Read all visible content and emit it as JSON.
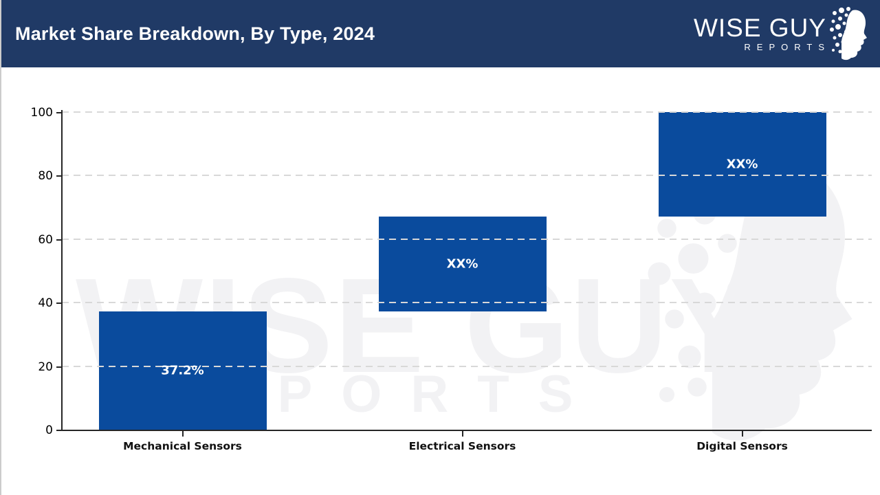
{
  "header": {
    "title": "Market Share Breakdown, By Type, 2024",
    "logo": {
      "line1": "WISE GUY",
      "line2": "REPORTS"
    }
  },
  "watermark": {
    "line1": "WISE GUY",
    "line2": "REPORTS"
  },
  "chart_data": {
    "type": "bar",
    "subtype": "waterfall-floating-bars",
    "title": "Market Share Breakdown, By Type, 2024",
    "categories": [
      "Mechanical Sensors",
      "Electrical Sensors",
      "Digital Sensors"
    ],
    "segments": [
      {
        "category": "Mechanical Sensors",
        "start": 0,
        "end": 37.2,
        "label": "37.2%"
      },
      {
        "category": "Electrical Sensors",
        "start": 37.2,
        "end": 67.2,
        "label": "XX%"
      },
      {
        "category": "Digital Sensors",
        "start": 67.2,
        "end": 100,
        "label": "XX%"
      }
    ],
    "xlabel": "",
    "ylabel": "",
    "ylim": [
      0,
      100
    ],
    "yticks": [
      0,
      20,
      40,
      60,
      80,
      100
    ],
    "grid": "horizontal dashed, drawn over bars",
    "legend": "none",
    "bar_color": "#0a4b9d",
    "bar_label_color": "#ffffff",
    "axis_color": "#262626",
    "grid_color": "#d8d8d8"
  },
  "colors": {
    "header_bg": "#203a66",
    "watermark": "#f2f2f4",
    "page_border": "#cccccc"
  }
}
